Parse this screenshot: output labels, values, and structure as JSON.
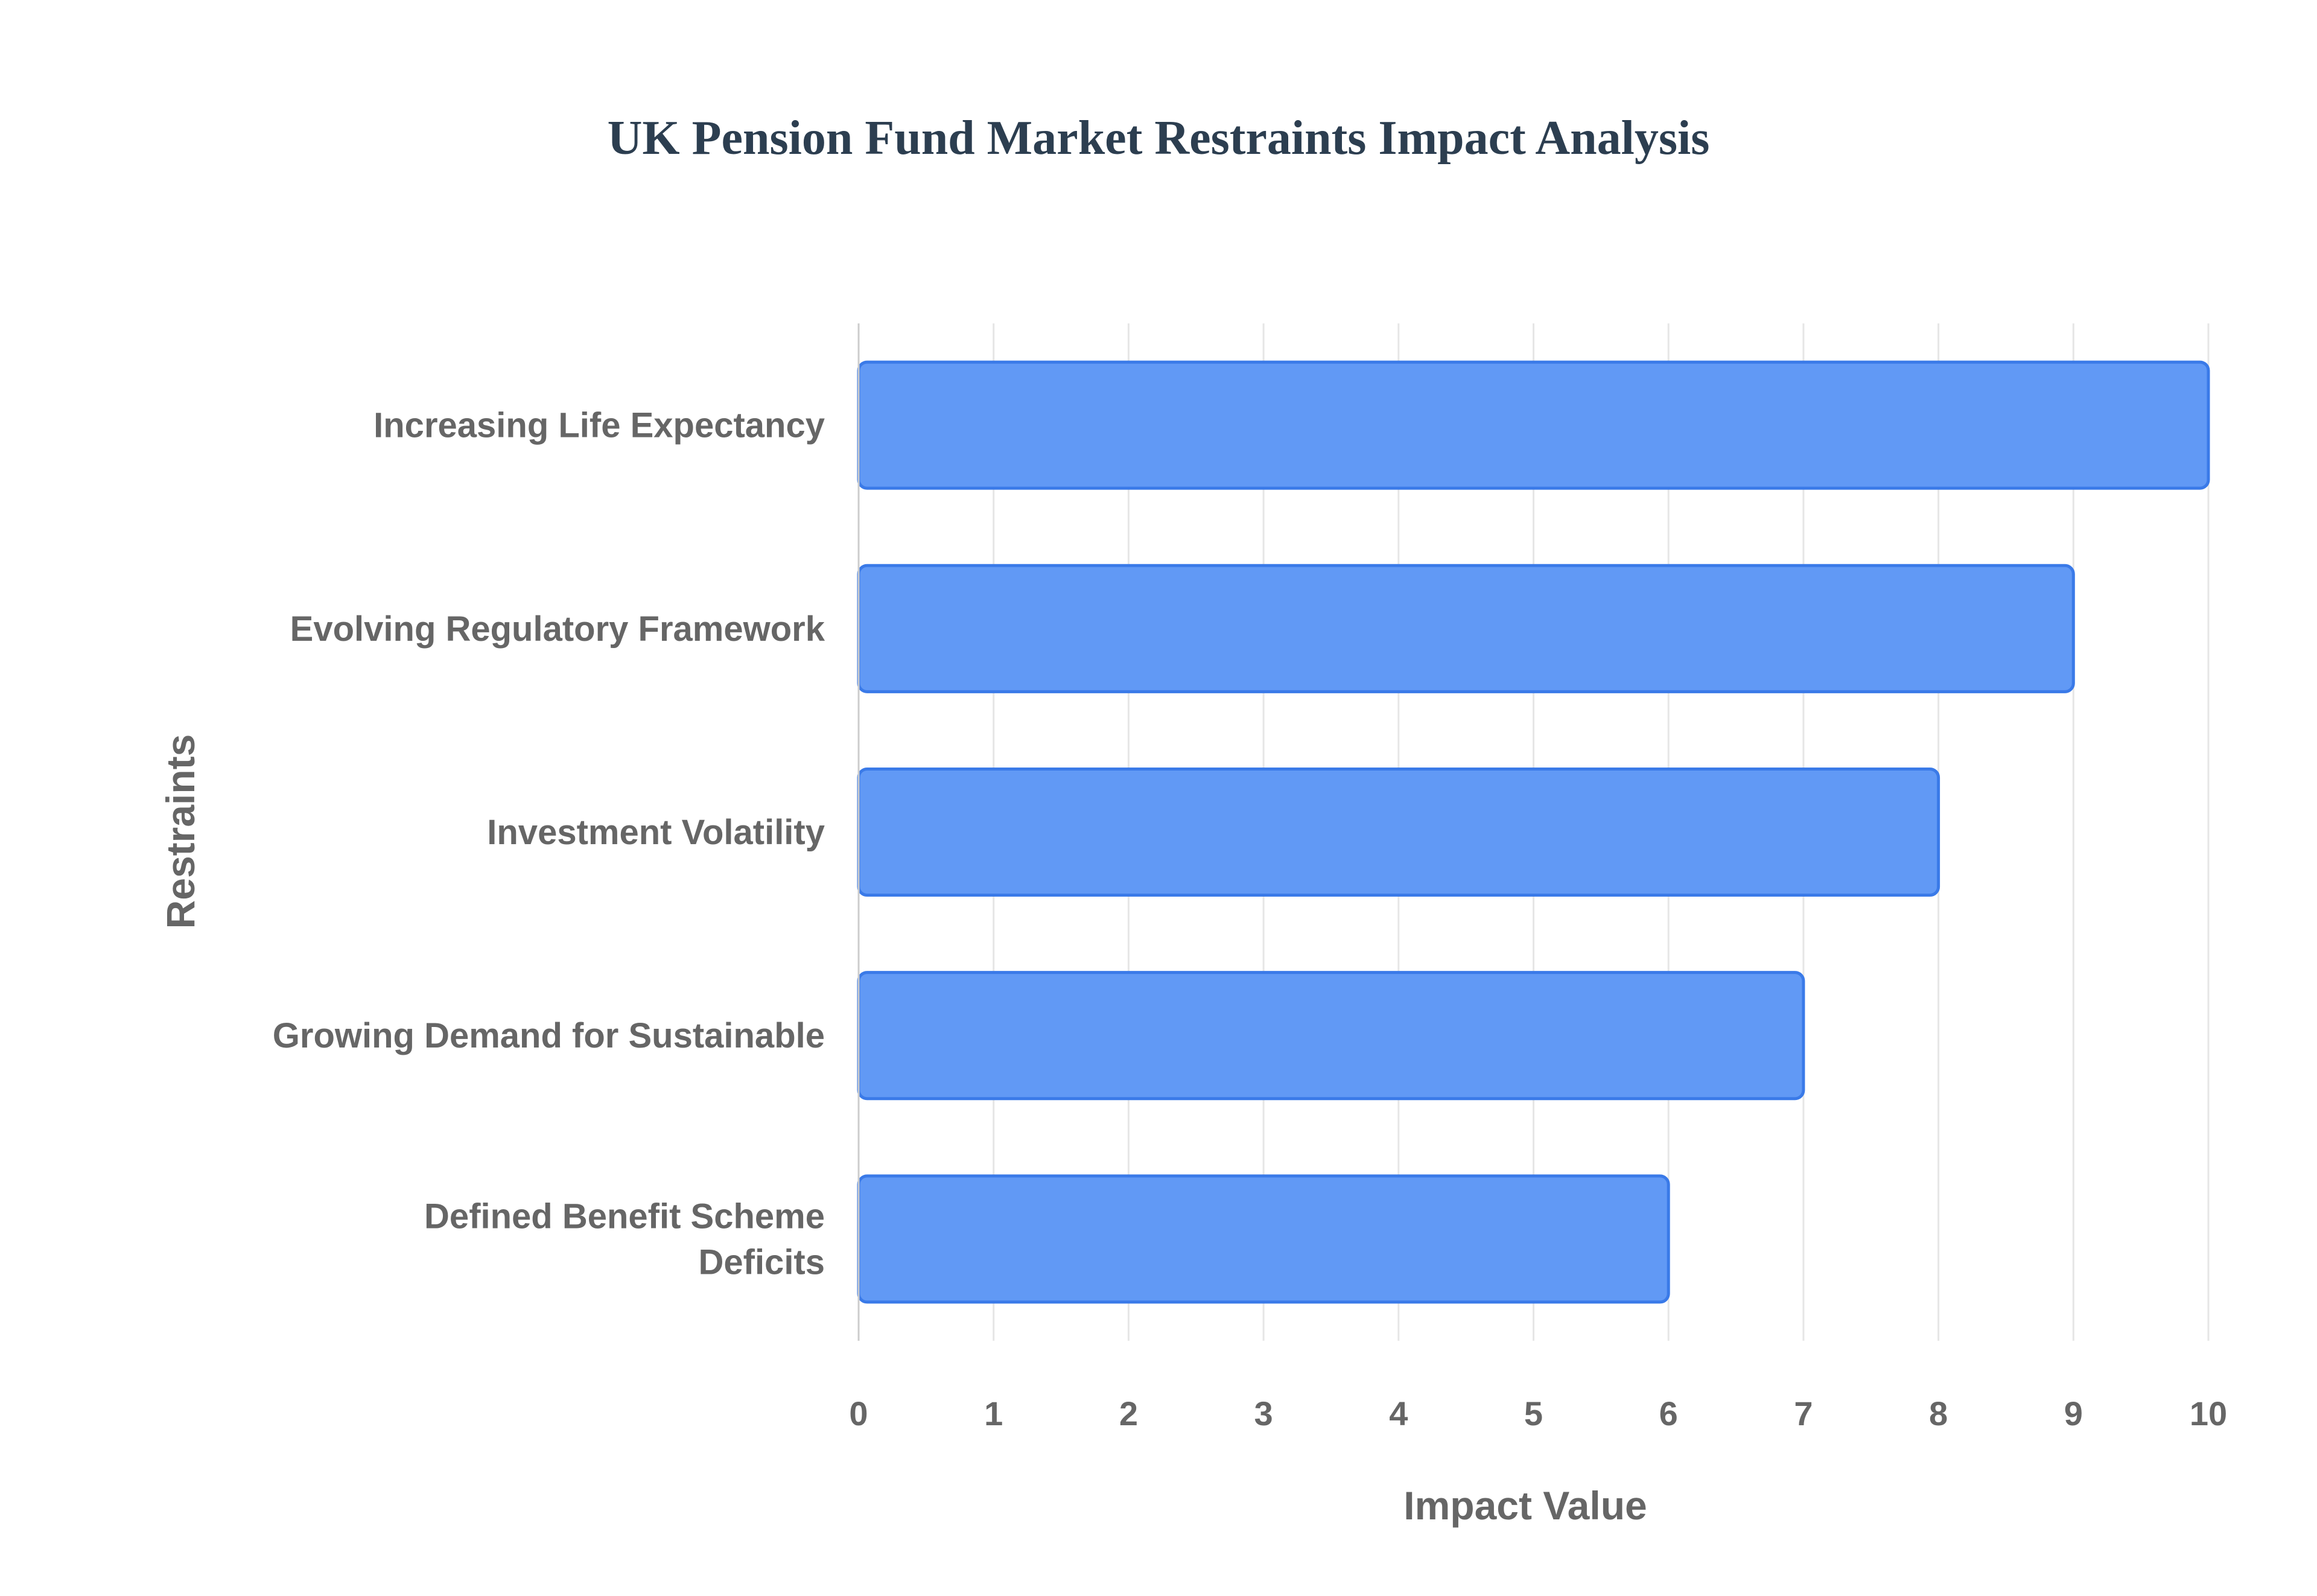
{
  "colors": {
    "bar_fill": "#6199f5",
    "bar_stroke": "#3a7ae8",
    "title": "#2c3e50",
    "axis_text": "#666666",
    "grid": "#e6e6e6",
    "axis_line": "#cccccc"
  },
  "chart_data": {
    "type": "bar",
    "orientation": "horizontal",
    "title": "UK Pension Fund Market Restraints Impact Analysis",
    "xlabel": "Impact Value",
    "ylabel": "Restraints",
    "categories": [
      "Increasing Life Expectancy",
      "Evolving Regulatory Framework",
      "Investment Volatility",
      "Growing Demand for Sustainable",
      "Defined Benefit Scheme Deficits"
    ],
    "category_label_lines": [
      [
        "Increasing Life Expectancy"
      ],
      [
        "Evolving Regulatory Framework"
      ],
      [
        "Investment Volatility"
      ],
      [
        "Growing Demand for Sustainable"
      ],
      [
        "Defined Benefit Scheme",
        "Deficits"
      ]
    ],
    "values": [
      10,
      9,
      8,
      7,
      6
    ],
    "xlim": [
      0,
      10
    ],
    "xticks": [
      "0",
      "1",
      "2",
      "3",
      "4",
      "5",
      "6",
      "7",
      "8",
      "9",
      "10"
    ],
    "grid": true,
    "legend": "none"
  }
}
